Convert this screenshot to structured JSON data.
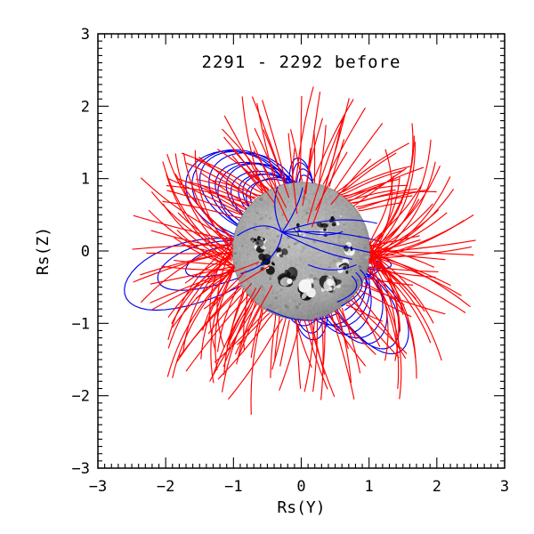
{
  "figure": {
    "background": "#ffffff"
  },
  "chart_data": {
    "type": "line",
    "title": "2291 - 2292 before",
    "xlabel": "Rs(Y)",
    "ylabel": "Rs(Z)",
    "xlim": [
      -3,
      3
    ],
    "ylim": [
      -3,
      3
    ],
    "xticks": [
      -3,
      -2,
      -1,
      0,
      1,
      2,
      3
    ],
    "yticks": [
      -3,
      -2,
      -1,
      0,
      1,
      2,
      3
    ],
    "xtick_labels": [
      "−3",
      "−2",
      "−1",
      "0",
      "1",
      "2",
      "3"
    ],
    "ytick_labels": [
      "−3",
      "−2",
      "−1",
      "0",
      "1",
      "2",
      "3"
    ],
    "minor_tick_step": 0.1,
    "grid": false,
    "legend": null,
    "description": "Coronal magnetic field line rendering: red open field lines and blue closed loops traced from a grayscale solar magnetogram sphere of radius 1 Rs centered at the origin.",
    "colors": {
      "open_field": "#ff0000",
      "closed_field": "#0000ee",
      "axis": "#000000",
      "sun_base": "#a6a6a6",
      "sun_limb": "#6e6e6e"
    },
    "sun_disk": {
      "center": [
        0,
        0
      ],
      "radius": 1.0
    },
    "open_field_families": [
      {
        "name": "west-equatorial-fan",
        "count": 46,
        "mode": "converge",
        "foot_theta": [
          -16,
          6
        ],
        "end_theta": [
          -58,
          52
        ],
        "r_end": [
          1.6,
          2.6
        ]
      },
      {
        "name": "east-equatorial-fan",
        "count": 44,
        "mode": "converge",
        "foot_theta": [
          170,
          197
        ],
        "end_theta": [
          136,
          238
        ],
        "r_end": [
          1.6,
          2.7
        ]
      },
      {
        "name": "north-fan",
        "count": 22,
        "mode": "follow",
        "foot_theta": [
          54,
          126
        ],
        "end_offset": [
          -14,
          14
        ],
        "r_end": [
          1.45,
          2.4
        ]
      },
      {
        "name": "northeast-fan",
        "count": 18,
        "mode": "follow",
        "foot_theta": [
          118,
          152
        ],
        "end_offset": [
          2,
          24
        ],
        "r_end": [
          1.5,
          2.25
        ]
      },
      {
        "name": "northwest-fan",
        "count": 13,
        "mode": "follow",
        "foot_theta": [
          34,
          58
        ],
        "end_offset": [
          -22,
          -2
        ],
        "r_end": [
          1.5,
          2.3
        ]
      },
      {
        "name": "south-fan",
        "count": 22,
        "mode": "follow",
        "foot_theta": [
          238,
          304
        ],
        "end_offset": [
          -12,
          12
        ],
        "r_end": [
          1.5,
          2.45
        ]
      },
      {
        "name": "southeast-fan",
        "count": 15,
        "mode": "follow",
        "foot_theta": [
          206,
          238
        ],
        "end_offset": [
          4,
          24
        ],
        "r_end": [
          1.6,
          2.5
        ]
      },
      {
        "name": "southwest-fan",
        "count": 12,
        "mode": "follow",
        "foot_theta": [
          298,
          338
        ],
        "end_offset": [
          -10,
          10
        ],
        "r_end": [
          1.5,
          2.3
        ]
      },
      {
        "name": "disk-north-spikes",
        "count": 11,
        "mode": "follow",
        "foot_theta": [
          56,
          124
        ],
        "foot_r": [
          0.35,
          0.9
        ],
        "end_offset": [
          -8,
          8
        ],
        "r_end": [
          1.3,
          2.05
        ]
      },
      {
        "name": "disk-southeast-spikes",
        "count": 7,
        "mode": "follow",
        "foot_theta": [
          192,
          232
        ],
        "foot_r": [
          0.5,
          0.92
        ],
        "end_offset": [
          0,
          14
        ],
        "r_end": [
          1.3,
          1.9
        ]
      }
    ],
    "closed_field_families": [
      {
        "name": "north-loop-bundle",
        "count": 12,
        "foot1": [
          94,
          103
        ],
        "foot2": [
          136,
          168
        ],
        "apex": [
          1.12,
          2.0
        ],
        "skew": 7
      },
      {
        "name": "east-giant-loops",
        "count": 3,
        "foot1": [
          169,
          176
        ],
        "foot2": [
          197,
          210
        ],
        "apex": [
          1.7,
          2.65
        ],
        "skew": 4
      },
      {
        "name": "southwest-loop-bundle",
        "count": 7,
        "foot1": [
          333,
          345
        ],
        "foot2": [
          281,
          301
        ],
        "apex": [
          1.15,
          2.05
        ],
        "skew": -6
      },
      {
        "name": "south-small-loops",
        "count": 3,
        "foot1": [
          261,
          268
        ],
        "foot2": [
          283,
          292
        ],
        "apex": [
          1.08,
          1.3
        ],
        "skew": 0
      },
      {
        "name": "north-small-loops",
        "count": 4,
        "foot1": [
          76,
          84
        ],
        "foot2": [
          91,
          100
        ],
        "apex": [
          1.1,
          1.35
        ],
        "skew": 2
      },
      {
        "name": "west-small-loops",
        "count": 4,
        "foot1": [
          354,
          362
        ],
        "foot2": [
          337,
          348
        ],
        "apex": [
          1.08,
          1.32
        ],
        "skew": -2
      }
    ],
    "disk_arcs": [
      {
        "p0": [
          -0.28,
          0.27
        ],
        "c": [
          0.45,
          0.55
        ],
        "p1": [
          1.1,
          0.4
        ]
      },
      {
        "p0": [
          -0.28,
          0.27
        ],
        "c": [
          0.5,
          0.32
        ],
        "p1": [
          1.17,
          0.13
        ]
      },
      {
        "p0": [
          -0.28,
          0.27
        ],
        "c": [
          0.45,
          0.1
        ],
        "p1": [
          1.08,
          -0.04
        ]
      },
      {
        "p0": [
          -0.28,
          0.27
        ],
        "c": [
          0.28,
          -0.04
        ],
        "p1": [
          0.74,
          -0.12
        ]
      },
      {
        "p0": [
          -0.28,
          0.27
        ],
        "c": [
          -0.45,
          0.62
        ],
        "p1": [
          -0.34,
          0.93
        ]
      },
      {
        "p0": [
          -0.28,
          0.27
        ],
        "c": [
          -0.05,
          0.6
        ],
        "p1": [
          0.02,
          0.92
        ]
      },
      {
        "p0": [
          -0.93,
          0.22
        ],
        "c": [
          -0.55,
          0.48
        ],
        "p1": [
          -0.28,
          0.27
        ]
      },
      {
        "p0": [
          -0.88,
          -0.33
        ],
        "c": [
          -0.35,
          -0.18
        ],
        "p1": [
          -0.28,
          0.25
        ]
      },
      {
        "p0": [
          0.52,
          -0.74
        ],
        "c": [
          0.95,
          -0.56
        ],
        "p1": [
          0.73,
          -0.36
        ]
      },
      {
        "p0": [
          0.58,
          -0.8
        ],
        "c": [
          1.05,
          -0.55
        ],
        "p1": [
          0.79,
          -0.31
        ]
      },
      {
        "p0": [
          0.63,
          -0.86
        ],
        "c": [
          1.14,
          -0.52
        ],
        "p1": [
          0.85,
          -0.27
        ]
      },
      {
        "p0": [
          -0.5,
          -0.84
        ],
        "c": [
          0.08,
          -1.14
        ],
        "p1": [
          0.53,
          -0.9
        ]
      },
      {
        "p0": [
          -0.05,
          0.3
        ],
        "c": [
          0.35,
          0.18
        ],
        "p1": [
          0.6,
          0.28
        ]
      },
      {
        "p0": [
          0.1,
          -0.2
        ],
        "c": [
          0.45,
          -0.35
        ],
        "p1": [
          0.8,
          -0.2
        ]
      }
    ],
    "active_regions": [
      {
        "c": [
          -0.62,
          0.12
        ],
        "n": 14,
        "spread": 0.12,
        "size": 4.5,
        "mix": 0.6
      },
      {
        "c": [
          -0.5,
          -0.18
        ],
        "n": 12,
        "spread": 0.12,
        "size": 4.0,
        "mix": 0.55
      },
      {
        "c": [
          -0.18,
          -0.4
        ],
        "n": 16,
        "spread": 0.14,
        "size": 5.5,
        "mix": 0.55
      },
      {
        "c": [
          0.1,
          -0.55
        ],
        "n": 18,
        "spread": 0.14,
        "size": 6.0,
        "mix": 0.5
      },
      {
        "c": [
          0.42,
          -0.48
        ],
        "n": 16,
        "spread": 0.13,
        "size": 6.0,
        "mix": 0.5
      },
      {
        "c": [
          0.62,
          -0.22
        ],
        "n": 12,
        "spread": 0.11,
        "size": 4.5,
        "mix": 0.55
      },
      {
        "c": [
          0.68,
          0.02
        ],
        "n": 8,
        "spread": 0.09,
        "size": 3.5,
        "mix": 0.6
      },
      {
        "c": [
          0.3,
          0.3
        ],
        "n": 10,
        "spread": 0.12,
        "size": 3.5,
        "mix": 0.65
      },
      {
        "c": [
          -0.05,
          0.32
        ],
        "n": 9,
        "spread": 0.1,
        "size": 3.0,
        "mix": 0.6
      },
      {
        "c": [
          0.52,
          0.42
        ],
        "n": 8,
        "spread": 0.1,
        "size": 3.0,
        "mix": 0.6
      },
      {
        "c": [
          -0.3,
          -0.02
        ],
        "n": 8,
        "spread": 0.1,
        "size": 3.0,
        "mix": 0.6
      }
    ],
    "speckle": {
      "count": 260,
      "size_min": 0.6,
      "size_max": 2.2
    }
  }
}
